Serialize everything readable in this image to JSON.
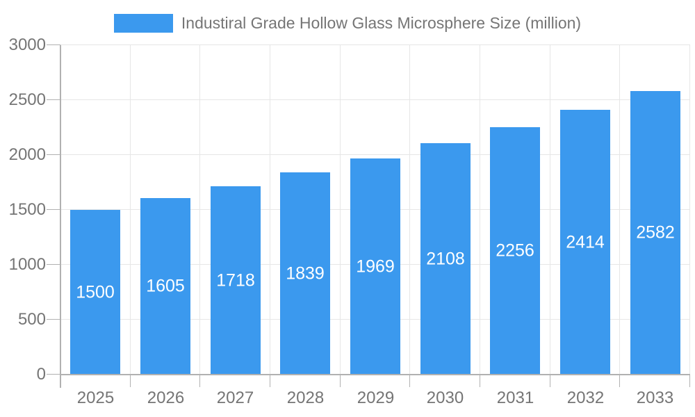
{
  "chart_data": {
    "type": "bar",
    "title": "Industiral Grade Hollow Glass Microsphere Size (million)",
    "series_name": "Industiral Grade Hollow Glass Microsphere Size (million)",
    "categories": [
      "2025",
      "2026",
      "2027",
      "2028",
      "2029",
      "2030",
      "2031",
      "2032",
      "2033"
    ],
    "values": [
      1500,
      1605,
      1718,
      1839,
      1969,
      2108,
      2256,
      2414,
      2582
    ],
    "xlabel": "",
    "ylabel": "",
    "ylim": [
      0,
      3000
    ],
    "yticks": [
      0,
      500,
      1000,
      1500,
      2000,
      2500,
      3000
    ],
    "grid": true,
    "legend_position": "top-center",
    "value_labels": "inside-center",
    "colors": {
      "bar": "#3b99ee",
      "grid": "#e6e6e6",
      "axis": "#b1b1b1",
      "tick": "#b1b1b1",
      "axis_text": "#757575",
      "legend_text": "#757575",
      "value_label": "#ffffff",
      "background": "#ffffff"
    }
  }
}
